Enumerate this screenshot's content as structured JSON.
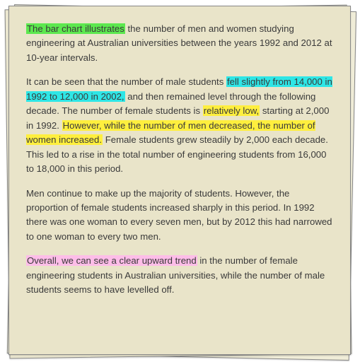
{
  "highlights": {
    "green": {
      "color": "#5de84f"
    },
    "cyan": {
      "color": "#2ee6e6"
    },
    "yellow": {
      "color": "#ffef3e"
    },
    "pink": {
      "color": "#fdbde8"
    }
  },
  "paragraphs": {
    "p1": {
      "seg1": {
        "text": "The bar chart illustrates",
        "hl": "green"
      },
      "seg2": {
        "text": " the number of men and women studying engineering at Australian universities between the years 1992 and 2012 at 10-year intervals."
      }
    },
    "p2": {
      "seg1": {
        "text": "It can be seen that the number of male students "
      },
      "seg2": {
        "text": "fell slightly from 14,000 in 1992 to 12,000 in 2002,",
        "hl": "cyan"
      },
      "seg3": {
        "text": " and then remained level through the following decade. The number of female students is "
      },
      "seg4": {
        "text": "relatively low,",
        "hl": "yellow"
      },
      "seg5": {
        "text": " starting at 2,000 in 1992. "
      },
      "seg6": {
        "text": "However, while the number of men decreased, the number of women increased.",
        "hl": "yellow"
      },
      "seg7": {
        "text": " Female students grew steadily by 2,000 each decade. This led to a rise in the total number of engineering students from 16,000 to 18,000 in this period."
      }
    },
    "p3": {
      "seg1": {
        "text": "Men continue to make up the majority of students. However, the proportion of female students increased sharply in this period. In 1992 there was one woman to every seven men, but by 2012 this had narrowed to one woman to every two men."
      }
    },
    "p4": {
      "seg1": {
        "text": "Overall, we can see a clear upward trend",
        "hl": "pink"
      },
      "seg2": {
        "text": " in the number of female engineering students in Australian universities, while the number of male students seems to have levelled off."
      }
    }
  }
}
